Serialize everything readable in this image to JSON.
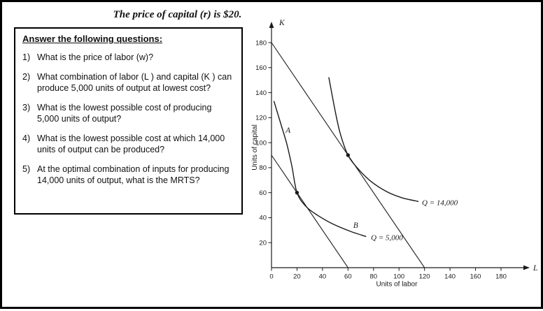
{
  "colors": {
    "ink": "#1a1a1a",
    "frame": "#000000",
    "background": "#ffffff"
  },
  "title": "The price of capital (r) is $20.",
  "questions_box": {
    "heading": "Answer the following questions:",
    "items": [
      {
        "num": "1)",
        "text": "What is the price of labor (w)?"
      },
      {
        "num": "2)",
        "text": "What combination of labor (L ) and capital (K ) can produce 5,000 units of output at lowest cost?"
      },
      {
        "num": "3)",
        "text": "What is the lowest possible cost of producing 5,000 units of output?"
      },
      {
        "num": "4)",
        "text": "What is the lowest possible cost at which 14,000 units of output can be produced?"
      },
      {
        "num": "5)",
        "text": "At the optimal combination of inputs for producing 14,000 units of output, what is the MRTS?"
      }
    ]
  },
  "chart_data": {
    "type": "line",
    "title": "",
    "xlabel": "Units of labor",
    "ylabel": "Units of capital",
    "x_symbol": "L",
    "y_symbol": "K",
    "xlim": [
      0,
      200
    ],
    "ylim": [
      0,
      196
    ],
    "grid": false,
    "legend": "none",
    "xticks": [
      0,
      20,
      40,
      60,
      80,
      100,
      120,
      140,
      160,
      180
    ],
    "yticks": [
      20,
      40,
      60,
      80,
      100,
      120,
      140,
      160,
      180
    ],
    "isocost_lines": [
      {
        "name": "isocost-outer",
        "k_intercept": 180,
        "l_intercept": 120
      },
      {
        "name": "isocost-inner",
        "k_intercept": 90,
        "l_intercept": 60
      }
    ],
    "isoquants": [
      {
        "label": "Q = 5,000",
        "points": [
          [
            2,
            133
          ],
          [
            7,
            116
          ],
          [
            12,
            99
          ],
          [
            16,
            81
          ],
          [
            20,
            60
          ],
          [
            27,
            49
          ],
          [
            36,
            42
          ],
          [
            48,
            35
          ],
          [
            62,
            29
          ],
          [
            74,
            25
          ]
        ],
        "tangency_point": [
          20,
          60
        ],
        "label_at": [
          78,
          22
        ]
      },
      {
        "label": "Q = 14,000",
        "points": [
          [
            45,
            152
          ],
          [
            50,
            125
          ],
          [
            54,
            107
          ],
          [
            60,
            90
          ],
          [
            68,
            79
          ],
          [
            78,
            69
          ],
          [
            90,
            61
          ],
          [
            102,
            56
          ],
          [
            115,
            53
          ]
        ],
        "tangency_point": [
          60,
          90
        ],
        "label_at": [
          118,
          50
        ]
      }
    ],
    "point_labels": [
      {
        "label": "A",
        "at": [
          13,
          108
        ]
      },
      {
        "label": "B",
        "at": [
          66,
          32
        ]
      }
    ]
  }
}
